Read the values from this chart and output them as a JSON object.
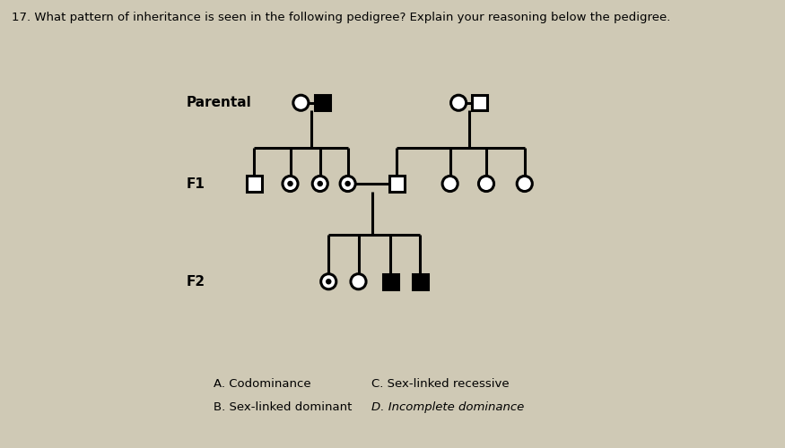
{
  "title": "17. What pattern of inheritance is seen in the following pedigree? Explain your reasoning below the pedigree.",
  "bg_color": "#cfc9b5",
  "label_parental": "Parental",
  "label_f1": "F1",
  "label_f2": "F2",
  "answers": [
    [
      "A. Codominance",
      "C. Sex-linked recessive"
    ],
    [
      "B. Sex-linked dominant",
      "D. Incomplete dominance"
    ]
  ],
  "line_color": "#000000",
  "line_width": 2.2
}
